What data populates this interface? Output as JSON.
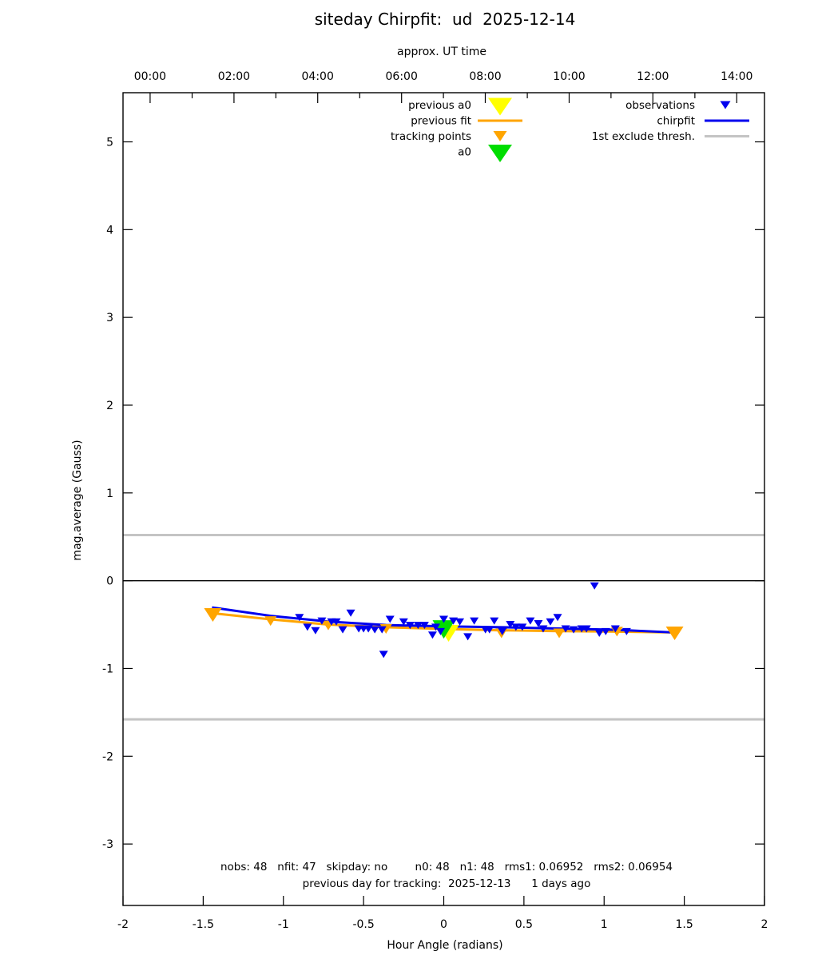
{
  "title": "siteday Chirpfit:  ud  2025-12-14",
  "stats": {
    "line1": "nobs: 48   nfit: 47   skipday: no        n0: 48   n1: 48   rms1: 0.06952   rms2: 0.06954",
    "line2": "previous day for tracking:  2025-12-13      1 days ago"
  },
  "legend": {
    "left": [
      {
        "label": "previous a0",
        "marker": "triangle-large",
        "color": "#ffff00"
      },
      {
        "label": "previous fit",
        "marker": "line",
        "color": "#ffa500"
      },
      {
        "label": "tracking points",
        "marker": "triangle-small",
        "color": "#ffa500"
      },
      {
        "label": "a0",
        "marker": "triangle-large",
        "color": "#00dd00"
      }
    ],
    "right": [
      {
        "label": "observations",
        "marker": "triangle-small",
        "color": "#0000ee"
      },
      {
        "label": "chirpfit",
        "marker": "line",
        "color": "#0000ee"
      },
      {
        "label": "1st exclude thresh.",
        "marker": "line",
        "color": "#c4c4c4"
      }
    ]
  },
  "chart_data": {
    "type": "scatter",
    "title": "siteday Chirpfit:  ud  2025-12-14",
    "xlabel": "Hour Angle (radians)",
    "ylabel": "mag.average (Gauss)",
    "x2label": "approx. UT time",
    "xlim": [
      -2,
      2
    ],
    "ylim": [
      -3.7,
      5.56
    ],
    "grid": false,
    "x_tick_values": [
      -2,
      -1.5,
      -1,
      -0.5,
      0,
      0.5,
      1,
      1.5,
      2
    ],
    "x_tick_labels": [
      "-2",
      "-1.5",
      "-1",
      "-0.5",
      "0",
      "0.5",
      "1",
      "1.5",
      "2"
    ],
    "y_tick_values": [
      -3,
      -2,
      -1,
      0,
      1,
      2,
      3,
      4,
      5
    ],
    "y_tick_labels": [
      "-3",
      "-2",
      "-1",
      "0",
      "1",
      "2",
      "3",
      "4",
      "5"
    ],
    "x2_tick_labels": [
      "00:00",
      "02:00",
      "04:00",
      "06:00",
      "08:00",
      "10:00",
      "12:00",
      "14:00"
    ],
    "x2_major_ha": [
      -1.831,
      -1.308,
      -0.786,
      -0.263,
      0.259,
      0.782,
      1.304,
      1.827
    ],
    "x2_minor_ha": [
      -1.569,
      -1.047,
      -0.524,
      -0.002,
      0.521,
      1.043,
      1.566
    ],
    "zero_line_y": 0,
    "exclude_thresholds": [
      0.52,
      -1.58
    ],
    "colors": {
      "observations": "#0000ee",
      "chirpfit": "#0000ee",
      "previous_fit": "#ffa500",
      "tracking_points": "#ffa500",
      "previous_a0": "#ffff00",
      "a0": "#00dd00",
      "threshold": "#c4c4c4",
      "zero_line": "#000000"
    },
    "series": [
      {
        "name": "observations",
        "type": "scatter",
        "marker": "triangle-down",
        "color": "#0000ee",
        "points": [
          [
            -0.9,
            -0.42
          ],
          [
            -0.85,
            -0.53
          ],
          [
            -0.8,
            -0.57
          ],
          [
            -0.76,
            -0.46
          ],
          [
            -0.7,
            -0.47
          ],
          [
            -0.67,
            -0.47
          ],
          [
            -0.63,
            -0.56
          ],
          [
            -0.58,
            -0.37
          ],
          [
            -0.53,
            -0.55
          ],
          [
            -0.5,
            -0.55
          ],
          [
            -0.47,
            -0.55
          ],
          [
            -0.43,
            -0.56
          ],
          [
            -0.385,
            -0.56
          ],
          [
            -0.375,
            -0.84
          ],
          [
            -0.335,
            -0.44
          ],
          [
            -0.25,
            -0.47
          ],
          [
            -0.21,
            -0.51
          ],
          [
            -0.16,
            -0.51
          ],
          [
            -0.12,
            -0.51
          ],
          [
            -0.07,
            -0.62
          ],
          [
            -0.05,
            -0.53
          ],
          [
            -0.02,
            -0.58
          ],
          [
            0.0,
            -0.44
          ],
          [
            0.06,
            -0.46
          ],
          [
            0.1,
            -0.47
          ],
          [
            0.15,
            -0.64
          ],
          [
            0.19,
            -0.46
          ],
          [
            0.26,
            -0.56
          ],
          [
            0.285,
            -0.56
          ],
          [
            0.315,
            -0.46
          ],
          [
            0.365,
            -0.58
          ],
          [
            0.415,
            -0.5
          ],
          [
            0.45,
            -0.53
          ],
          [
            0.49,
            -0.53
          ],
          [
            0.54,
            -0.46
          ],
          [
            0.59,
            -0.49
          ],
          [
            0.62,
            -0.55
          ],
          [
            0.665,
            -0.47
          ],
          [
            0.71,
            -0.42
          ],
          [
            0.76,
            -0.55
          ],
          [
            0.81,
            -0.56
          ],
          [
            0.86,
            -0.55
          ],
          [
            0.89,
            -0.55
          ],
          [
            0.94,
            -0.06
          ],
          [
            0.97,
            -0.6
          ],
          [
            1.01,
            -0.58
          ],
          [
            1.07,
            -0.55
          ],
          [
            1.14,
            -0.58
          ]
        ]
      },
      {
        "name": "chirpfit",
        "type": "line",
        "color": "#0000ee",
        "points": [
          [
            -1.445,
            -0.305
          ],
          [
            -1.08,
            -0.4
          ],
          [
            -0.72,
            -0.465
          ],
          [
            -0.36,
            -0.505
          ],
          [
            0.0,
            -0.52
          ],
          [
            0.36,
            -0.53
          ],
          [
            0.72,
            -0.545
          ],
          [
            1.08,
            -0.56
          ],
          [
            1.44,
            -0.59
          ]
        ]
      },
      {
        "name": "previous fit",
        "type": "line",
        "color": "#ffa500",
        "points": [
          [
            -1.445,
            -0.37
          ],
          [
            -1.08,
            -0.44
          ],
          [
            -0.72,
            -0.5
          ],
          [
            -0.36,
            -0.53
          ],
          [
            0.0,
            -0.55
          ],
          [
            0.36,
            -0.565
          ],
          [
            0.72,
            -0.575
          ],
          [
            1.08,
            -0.58
          ],
          [
            1.44,
            -0.59
          ]
        ]
      },
      {
        "name": "tracking points",
        "type": "scatter",
        "marker": "triangle-down",
        "color": "#ffa500",
        "points": [
          [
            -1.44,
            -0.39
          ],
          [
            -1.08,
            -0.46
          ],
          [
            -0.72,
            -0.51
          ],
          [
            -0.36,
            -0.55
          ],
          [
            0.0,
            -0.57
          ],
          [
            0.36,
            -0.6
          ],
          [
            0.72,
            -0.6
          ],
          [
            1.08,
            -0.58
          ],
          [
            1.44,
            -0.6
          ]
        ]
      },
      {
        "name": "previous a0",
        "type": "scatter",
        "marker": "triangle-down-large",
        "color": "#ffff00",
        "points": [
          [
            0.03,
            -0.6
          ]
        ]
      },
      {
        "name": "a0",
        "type": "scatter",
        "marker": "triangle-down-large",
        "color": "#00dd00",
        "points": [
          [
            0.0,
            -0.555
          ]
        ]
      }
    ],
    "annotations": [
      "nobs: 48   nfit: 47   skipday: no        n0: 48   n1: 48   rms1: 0.06952   rms2: 0.06954",
      "previous day for tracking:  2025-12-13      1 days ago"
    ]
  }
}
